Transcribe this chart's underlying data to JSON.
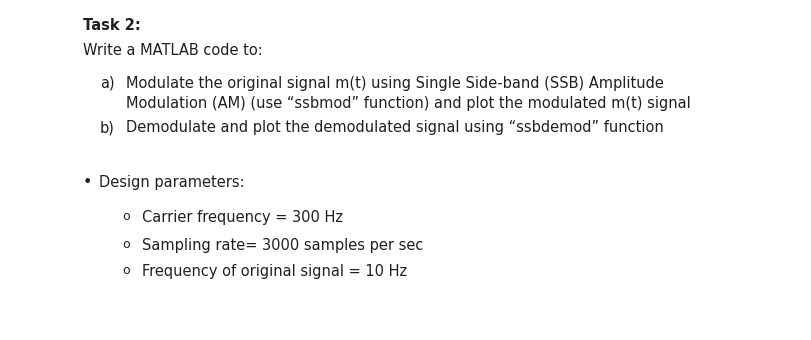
{
  "background_color": "#ffffff",
  "text_color": "#231f20",
  "title_bold": "Task 2:",
  "title_normal": "Write a MATLAB code to:",
  "item_a_label": "a)",
  "item_a_line1": "Modulate the original signal m(t) using Single Side-band (SSB) Amplitude",
  "item_a_line2": "Modulation (AM) (use “ssbmod” function) and plot the modulated m(t) signal",
  "item_b_label": "b)",
  "item_b_line1": "Demodulate and plot the demodulated signal using “ssbdemod” function",
  "bullet_header": "Design parameters:",
  "sub_items": [
    "Carrier frequency = 300 Hz",
    "Sampling rate= 3000 samples per sec",
    "Frequency of original signal = 10 Hz"
  ],
  "fig_width": 8.12,
  "fig_height": 3.4,
  "dpi": 100,
  "font_size": 10.5,
  "font_family": "DejaVu Sans"
}
